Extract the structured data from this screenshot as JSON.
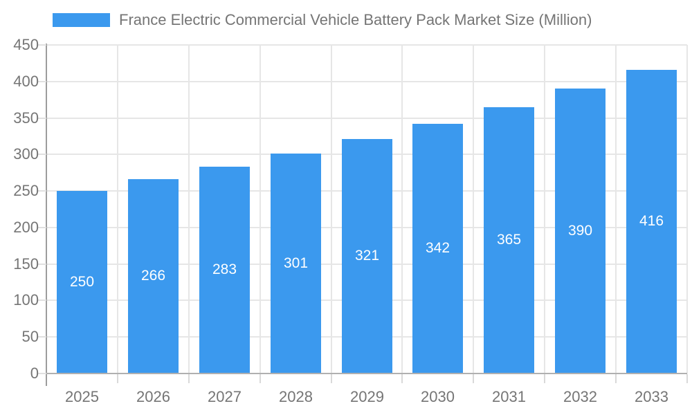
{
  "legend": {
    "series_label": "France Electric Commercial Vehicle Battery Pack Market Size (Million)"
  },
  "chart_data": {
    "type": "bar",
    "title": "France Electric Commercial Vehicle Battery Pack Market Size (Million)",
    "categories": [
      "2025",
      "2026",
      "2027",
      "2028",
      "2029",
      "2030",
      "2031",
      "2032",
      "2033"
    ],
    "values": [
      250,
      266,
      283,
      301,
      321,
      342,
      365,
      390,
      416
    ],
    "xlabel": "",
    "ylabel": "",
    "ylim": [
      0,
      450
    ],
    "ytick_step": 50,
    "grid": true,
    "legend_position": "top-left",
    "bar_color": "#3b99ee",
    "bar_label_color": "#ffffff",
    "axis_text_color": "#757575",
    "gridline_color": "#e6e6e6",
    "axis_line_color": "#b0b0b0"
  }
}
